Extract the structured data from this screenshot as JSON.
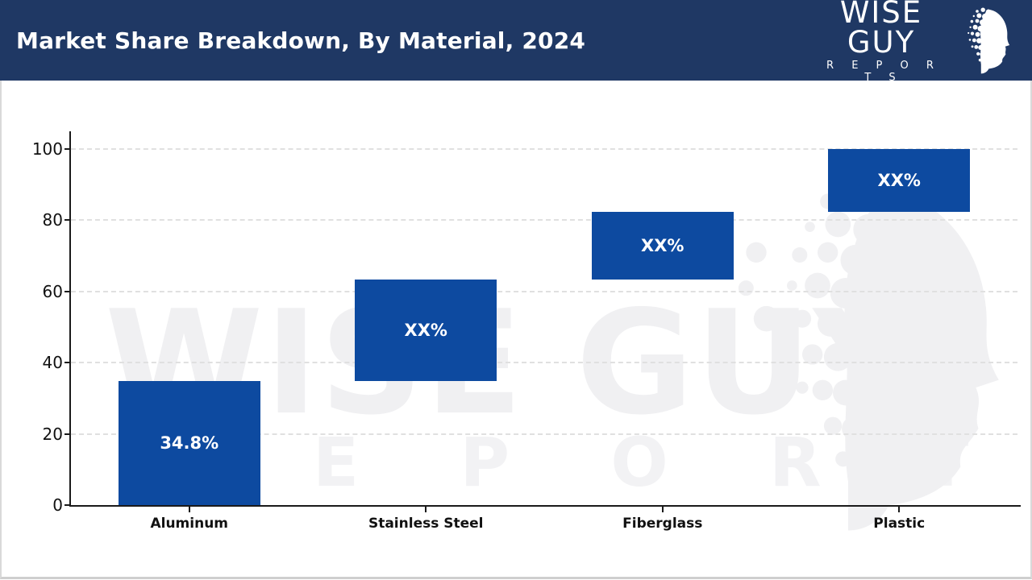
{
  "header": {
    "title": "Market Share Breakdown, By Material, 2024",
    "bg_color": "#1f3864",
    "logo": {
      "line1": "WISE GUY",
      "line2": "R E P O R T S"
    }
  },
  "watermark": {
    "line1": "WISE GUY.",
    "line2": "R E P O R T S"
  },
  "chart_data": {
    "type": "bar",
    "subtype": "floating-waterfall",
    "title": "Market Share Breakdown, By Material, 2024",
    "categories": [
      "Aluminum",
      "Stainless Steel",
      "Fiberglass",
      "Plastic"
    ],
    "segments": [
      {
        "category": "Aluminum",
        "start": 0,
        "end": 34.8,
        "label": "34.8%"
      },
      {
        "category": "Stainless Steel",
        "start": 34.8,
        "end": 63.4,
        "label": "XX%"
      },
      {
        "category": "Fiberglass",
        "start": 63.4,
        "end": 82.3,
        "label": "XX%"
      },
      {
        "category": "Plastic",
        "start": 82.4,
        "end": 100,
        "label": "XX%"
      }
    ],
    "xlabel": "",
    "ylabel": "",
    "yticks": [
      0,
      20,
      40,
      60,
      80,
      100
    ],
    "ylim": [
      0,
      105
    ],
    "grid": "horizontal-dashed",
    "legend": "none",
    "bar_color": "#0d4aa0",
    "bar_label_color": "#ffffff",
    "axis_color": "#1a1a1a"
  }
}
